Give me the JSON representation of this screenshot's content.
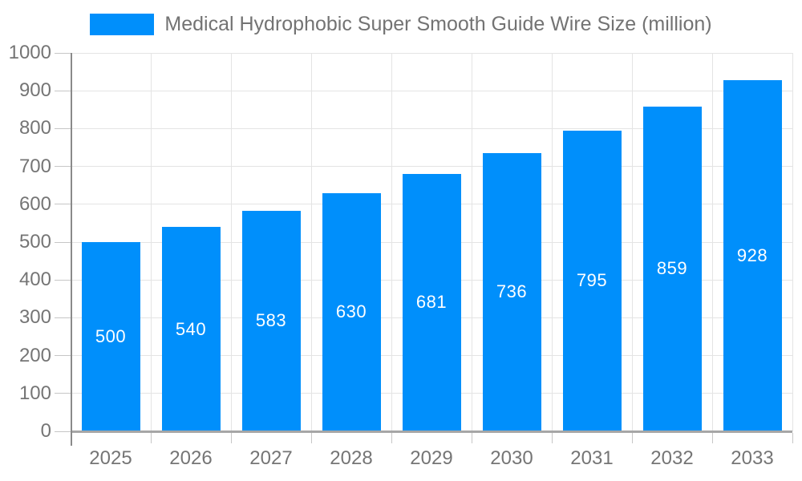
{
  "colors": {
    "bar": "#008FFB",
    "bar_value_text": "#ffffff",
    "grid": "#e4e4e4",
    "y_axis_line": "#8a8a8a",
    "x_axis_line": "#a6a6a6",
    "tick": "#c6c6c6",
    "axis_label_text": "#757575",
    "legend_text": "#737373"
  },
  "chart_data": {
    "type": "bar",
    "title": "",
    "xlabel": "",
    "ylabel": "",
    "categories": [
      "2025",
      "2026",
      "2027",
      "2028",
      "2029",
      "2030",
      "2031",
      "2032",
      "2033"
    ],
    "series": [
      {
        "name": "Medical Hydrophobic Super Smooth Guide Wire Size (million)",
        "values": [
          500,
          540,
          583,
          630,
          681,
          736,
          795,
          859,
          928
        ]
      }
    ],
    "bar_labels": true,
    "ylim": [
      0,
      1000
    ],
    "yticks": [
      0,
      100,
      200,
      300,
      400,
      500,
      600,
      700,
      800,
      900,
      1000
    ],
    "grid": true,
    "legend_position": "top"
  }
}
